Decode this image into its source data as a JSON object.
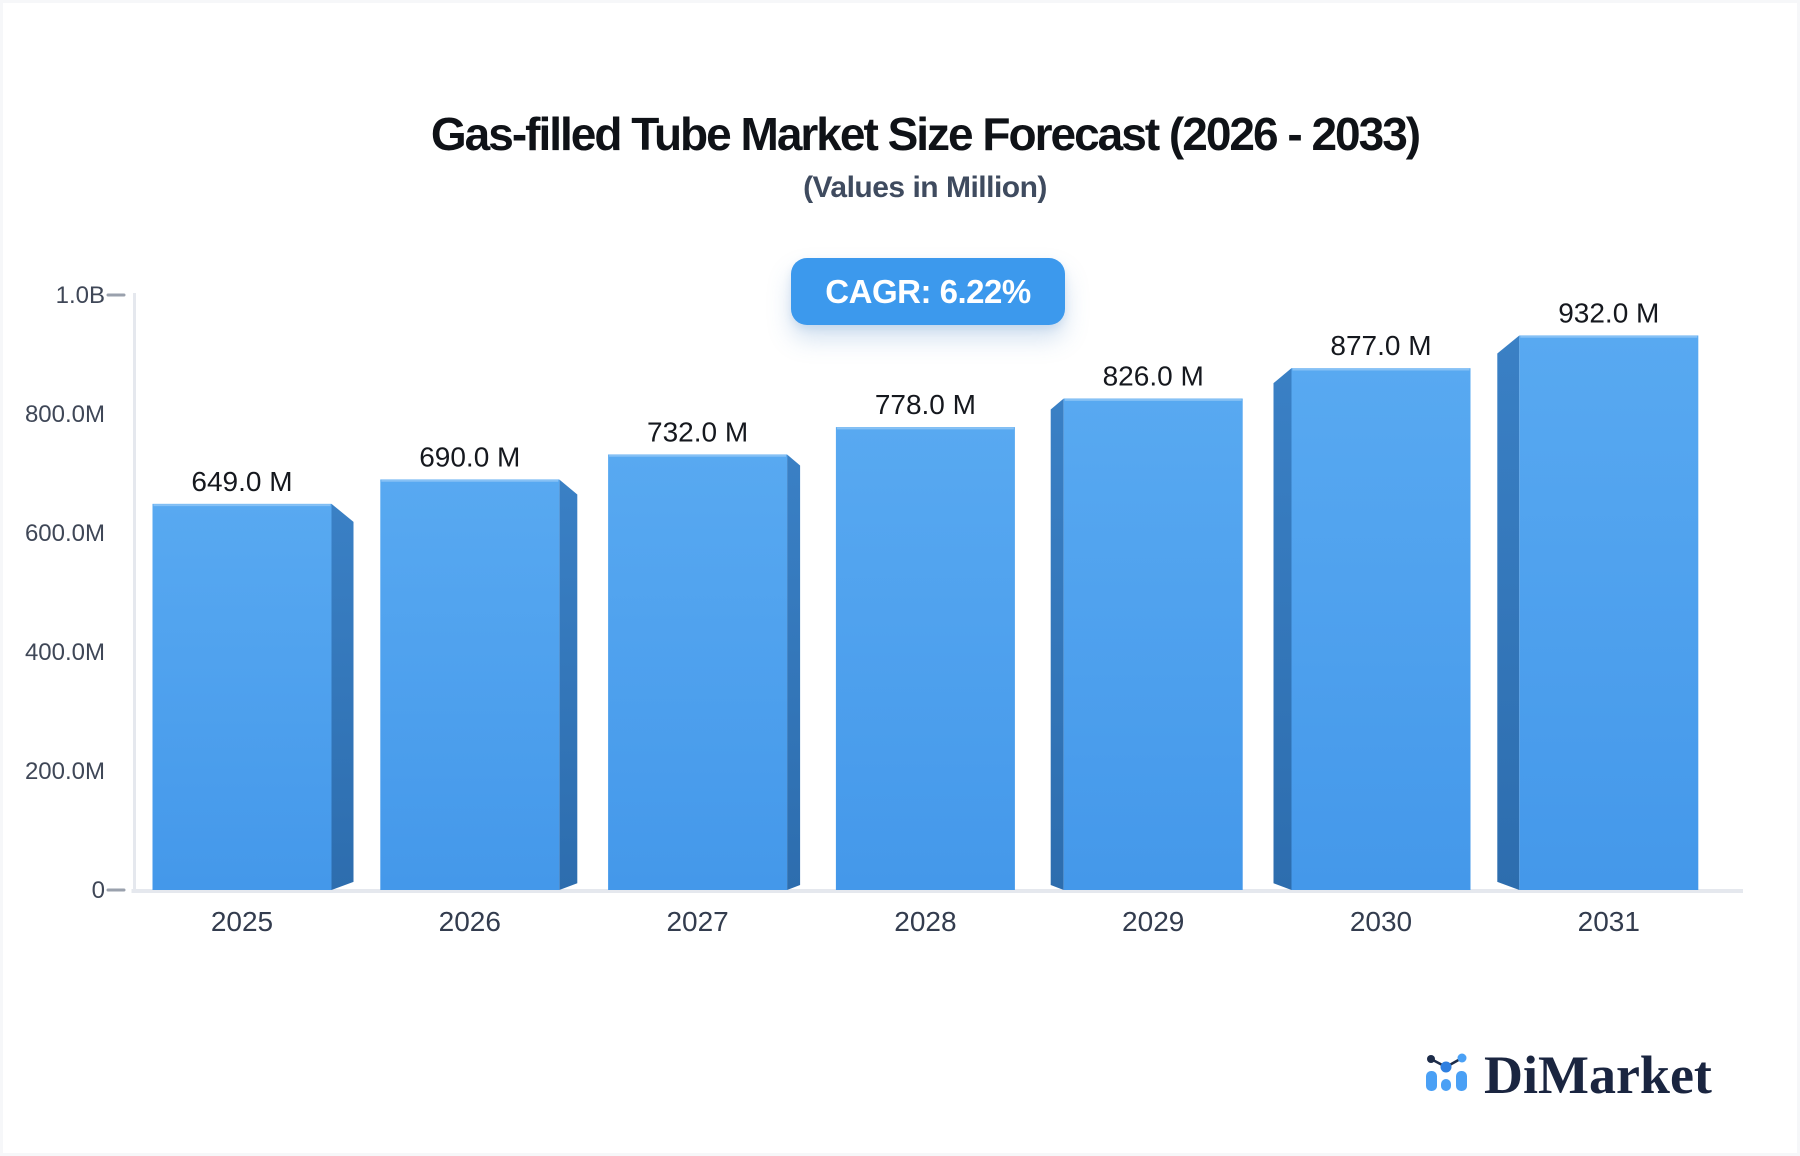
{
  "header": {
    "title": "Gas-filled Tube Market Size Forecast (2026 - 2033)",
    "subtitle": "(Values in Million)"
  },
  "badge": {
    "label": "CAGR: 6.22%"
  },
  "chart_data": {
    "type": "bar",
    "title": "Gas-filled Tube Market Size Forecast (2026 - 2033)",
    "subtitle": "(Values in Million)",
    "cagr_percent": 6.22,
    "categories": [
      "2025",
      "2026",
      "2027",
      "2028",
      "2029",
      "2030",
      "2031"
    ],
    "values": [
      649,
      690,
      732,
      778,
      826,
      877,
      932
    ],
    "value_labels": [
      "649.0 M",
      "690.0 M",
      "732.0 M",
      "778.0 M",
      "826.0 M",
      "877.0 M",
      "932.0 M"
    ],
    "unit": "Million",
    "xlabel": "",
    "ylabel": "",
    "ylim": [
      0,
      1000
    ],
    "y_ticks": [
      {
        "label": "1.0B",
        "value": 1000,
        "dash": true
      },
      {
        "label": "800.0M",
        "value": 800,
        "dash": false
      },
      {
        "label": "600.0M",
        "value": 600,
        "dash": false
      },
      {
        "label": "400.0M",
        "value": 400,
        "dash": false
      },
      {
        "label": "200.0M",
        "value": 200,
        "dash": false
      },
      {
        "label": "0",
        "value": 0,
        "dash": true
      }
    ],
    "grid": false,
    "legend": false,
    "bar_style": "3d-perspective",
    "colors": {
      "bar_front_top": "#58a9f1",
      "bar_front_bottom": "#4498ea",
      "bar_side_top": "#3a80c5",
      "bar_side_bottom": "#2d6dae",
      "badge_bg": "#3c99ed",
      "badge_text": "#ffffff",
      "axis_line": "#e5e8ee",
      "tick_dash": "#9aa1ad",
      "y_tick_text": "#3f4757",
      "x_tick_text": "#333c4e",
      "value_text": "#15181e"
    }
  },
  "logo": {
    "brand": "DiMarket",
    "icon": "bar-chart-sparkline-icon",
    "brand_color": "#1a2540",
    "icon_blue": "#4aa0f5",
    "icon_mid_blue": "#2f7fe0",
    "icon_navy": "#1d2c49"
  }
}
